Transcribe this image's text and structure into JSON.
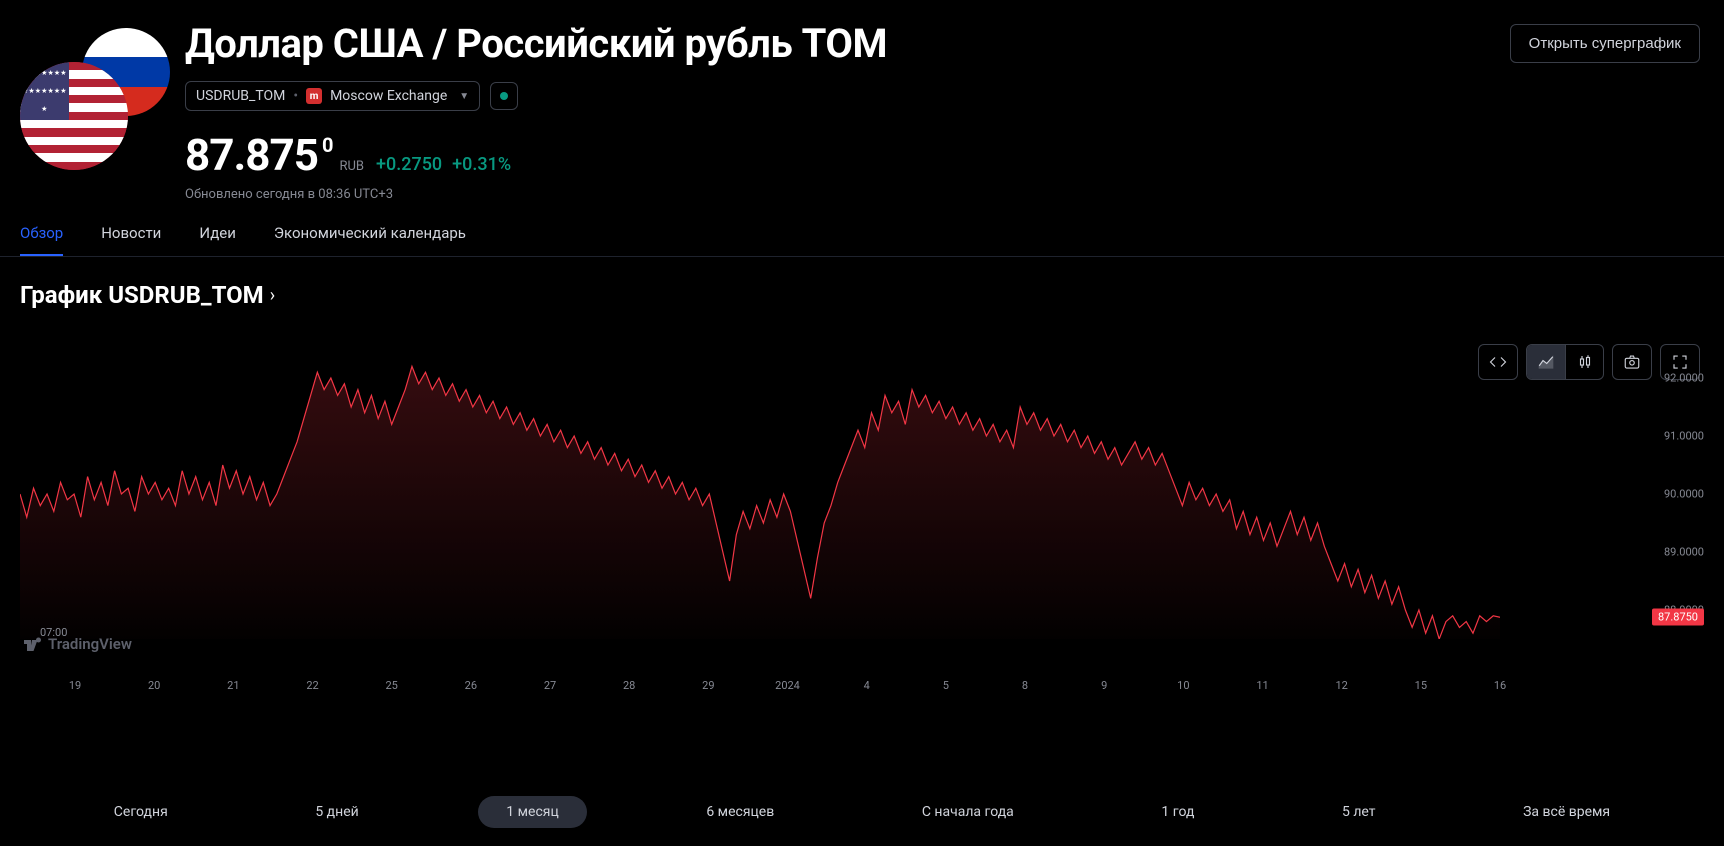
{
  "header": {
    "title": "Доллар США / Российский рубль TOM",
    "symbol": "USDRUB_TOM",
    "exchange": "Moscow Exchange",
    "exchange_icon_bg": "#d32f2f",
    "status_color": "#089981",
    "price_main": "87.875",
    "price_sup": "0",
    "currency": "RUB",
    "change_abs": "+0.2750",
    "change_pct": "+0.31%",
    "change_color": "#089981",
    "updated": "Обновлено сегодня в 08:36 UTC+3",
    "super_button": "Открыть суперграфик"
  },
  "flags": {
    "ru_colors": [
      "#ffffff",
      "#0039a6",
      "#d52b1e"
    ],
    "us_red": "#b22234",
    "us_white": "#ffffff",
    "us_blue": "#3c3b6e"
  },
  "tabs": [
    {
      "label": "Обзор",
      "active": true
    },
    {
      "label": "Новости",
      "active": false
    },
    {
      "label": "Идеи",
      "active": false
    },
    {
      "label": "Экономический календарь",
      "active": false
    }
  ],
  "chart": {
    "title": "График USDRUB_TOM",
    "watermark": "TradingView",
    "type": "area",
    "line_color": "#f23645",
    "fill_color_top": "rgba(242,54,69,0.22)",
    "fill_color_bottom": "rgba(242,54,69,0.01)",
    "background": "#000000",
    "ylim": [
      87.5,
      92.5
    ],
    "yticks": [
      88.0,
      89.0,
      90.0,
      91.0,
      92.0
    ],
    "ytick_labels": [
      "88.0000",
      "89.0000",
      "90.0000",
      "91.0000",
      "92.0000"
    ],
    "price_tag_value": "87.8750",
    "price_tag_bg": "#f23645",
    "xticks": [
      "19",
      "20",
      "21",
      "22",
      "25",
      "26",
      "27",
      "28",
      "29",
      "2024",
      "4",
      "5",
      "8",
      "9",
      "10",
      "11",
      "12",
      "15",
      "16"
    ],
    "x_start_label": "07:00",
    "series": [
      90.0,
      89.6,
      90.1,
      89.8,
      90.0,
      89.7,
      90.2,
      89.9,
      90.0,
      89.6,
      90.3,
      89.9,
      90.2,
      89.8,
      90.4,
      90.0,
      90.1,
      89.7,
      90.3,
      90.0,
      90.2,
      89.9,
      90.1,
      89.8,
      90.4,
      90.0,
      90.3,
      89.9,
      90.2,
      89.8,
      90.5,
      90.1,
      90.4,
      90.0,
      90.3,
      89.9,
      90.2,
      89.8,
      90.0,
      90.3,
      90.6,
      90.9,
      91.3,
      91.7,
      92.1,
      91.8,
      92.0,
      91.7,
      91.9,
      91.5,
      91.8,
      91.4,
      91.7,
      91.3,
      91.6,
      91.2,
      91.5,
      91.8,
      92.2,
      91.9,
      92.1,
      91.8,
      92.0,
      91.7,
      91.9,
      91.6,
      91.8,
      91.5,
      91.7,
      91.4,
      91.6,
      91.3,
      91.5,
      91.2,
      91.4,
      91.1,
      91.3,
      91.0,
      91.2,
      90.9,
      91.1,
      90.8,
      91.0,
      90.7,
      90.9,
      90.6,
      90.8,
      90.5,
      90.7,
      90.4,
      90.6,
      90.3,
      90.5,
      90.2,
      90.4,
      90.1,
      90.3,
      90.0,
      90.2,
      89.9,
      90.1,
      89.8,
      90.0,
      89.5,
      89.0,
      88.5,
      89.3,
      89.7,
      89.4,
      89.8,
      89.5,
      89.9,
      89.6,
      90.0,
      89.7,
      89.2,
      88.7,
      88.2,
      88.9,
      89.5,
      89.8,
      90.2,
      90.5,
      90.8,
      91.1,
      90.8,
      91.4,
      91.1,
      91.7,
      91.4,
      91.6,
      91.2,
      91.8,
      91.5,
      91.7,
      91.4,
      91.6,
      91.3,
      91.5,
      91.2,
      91.4,
      91.1,
      91.3,
      91.0,
      91.2,
      90.9,
      91.1,
      90.8,
      91.5,
      91.2,
      91.4,
      91.1,
      91.3,
      91.0,
      91.2,
      90.9,
      91.1,
      90.8,
      91.0,
      90.7,
      90.9,
      90.6,
      90.8,
      90.5,
      90.7,
      90.9,
      90.6,
      90.8,
      90.5,
      90.7,
      90.4,
      90.1,
      89.8,
      90.2,
      89.9,
      90.1,
      89.8,
      90.0,
      89.7,
      89.9,
      89.4,
      89.7,
      89.3,
      89.6,
      89.2,
      89.5,
      89.1,
      89.4,
      89.7,
      89.3,
      89.6,
      89.2,
      89.5,
      89.1,
      88.8,
      88.5,
      88.8,
      88.4,
      88.7,
      88.3,
      88.6,
      88.2,
      88.5,
      88.1,
      88.4,
      88.0,
      87.7,
      88.0,
      87.6,
      87.9,
      87.5,
      87.8,
      87.9,
      87.7,
      87.8,
      87.6,
      87.9,
      87.8,
      87.9,
      87.875
    ]
  },
  "ranges": [
    {
      "label": "Сегодня",
      "active": false
    },
    {
      "label": "5 дней",
      "active": false
    },
    {
      "label": "1 месяц",
      "active": true
    },
    {
      "label": "6 месяцев",
      "active": false
    },
    {
      "label": "С начала года",
      "active": false
    },
    {
      "label": "1 год",
      "active": false
    },
    {
      "label": "5 лет",
      "active": false
    },
    {
      "label": "За всё время",
      "active": false
    }
  ]
}
